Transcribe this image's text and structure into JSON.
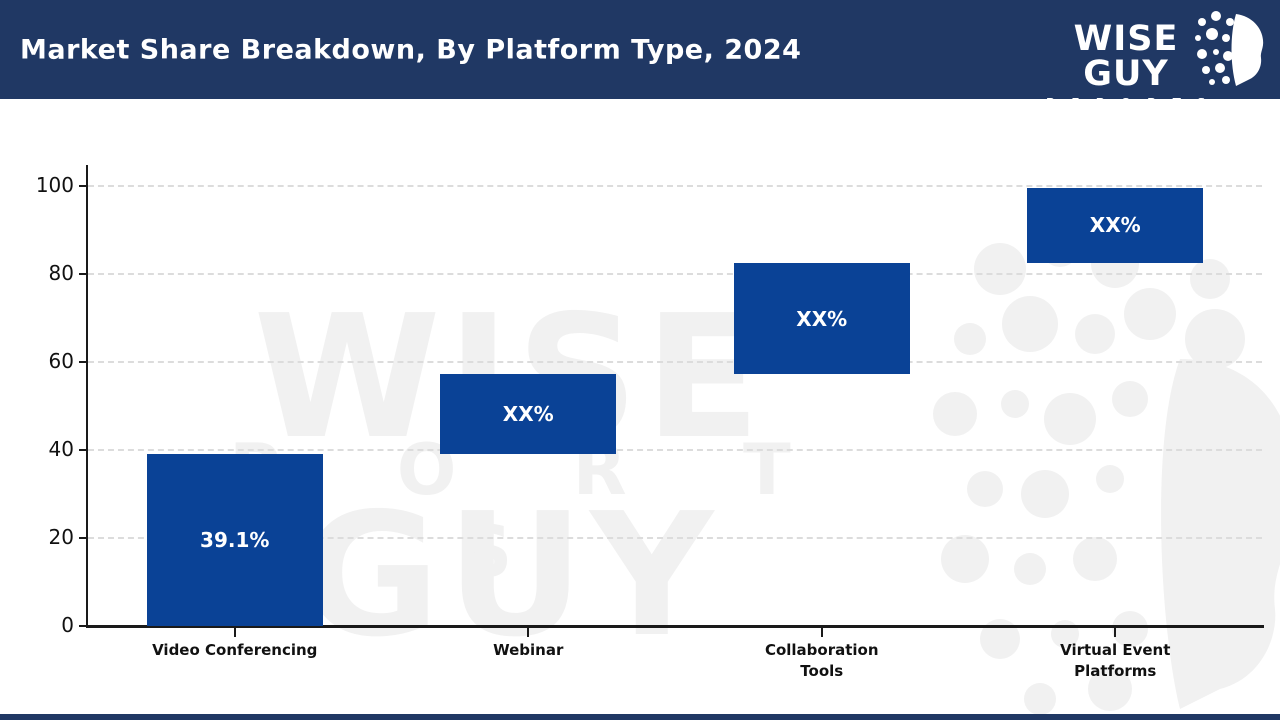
{
  "header": {
    "title": "Market Share Breakdown, By Platform Type, 2024",
    "bg_color": "#203864",
    "logo": {
      "line1": "WISE GUY",
      "line2": "R E P O R T S"
    }
  },
  "watermark": {
    "line1": "WISE GUY",
    "line2": "P O R T S"
  },
  "chart_data": {
    "type": "bar",
    "subtype": "waterfall",
    "title": "Market Share Breakdown, By Platform Type, 2024",
    "categories": [
      "Video Conferencing",
      "Webinar",
      "Collaboration\nTools",
      "Virtual Event\nPlatforms"
    ],
    "segments": [
      {
        "category": "Video Conferencing",
        "start": 0,
        "end": 39.1,
        "label": "39.1%"
      },
      {
        "category": "Webinar",
        "start": 39.1,
        "end": 57.2,
        "label": "XX%"
      },
      {
        "category": "Collaboration Tools",
        "start": 57.2,
        "end": 82.5,
        "label": "XX%"
      },
      {
        "category": "Virtual Event Platforms",
        "start": 82.5,
        "end": 99.6,
        "label": "XX%"
      }
    ],
    "ylim": [
      0,
      100
    ],
    "yticks": [
      0,
      20,
      40,
      60,
      80,
      100
    ],
    "xlabel": "",
    "ylabel": "",
    "grid": "horizontal-dashed",
    "legend": "none",
    "bar_color": "#0a4296",
    "bar_label_color": "#ffffff",
    "grid_color": "#dcdcdc",
    "axis_color": "#1a1a1a",
    "tick_label_color": "#111111"
  }
}
